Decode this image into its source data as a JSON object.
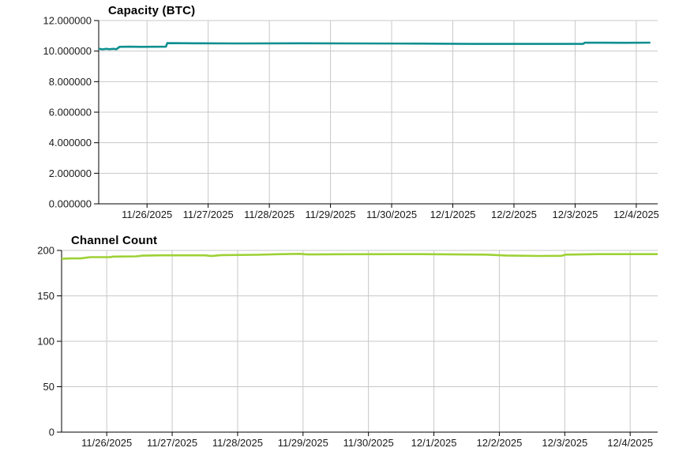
{
  "page": {
    "background": "#ffffff",
    "grid_color": "#c8c8c8",
    "axis_color": "#000000",
    "label_color": "#1a1a1a"
  },
  "chart_data": [
    {
      "type": "line",
      "title": "Capacity (BTC)",
      "xlabel": "",
      "ylabel": "",
      "legend": "none",
      "grid": true,
      "grid_color": "#c8c8c8",
      "axis_color": "#000000",
      "ylim": [
        0,
        12
      ],
      "xlim": [
        -0.79,
        8.35
      ],
      "y_ticks": [
        0,
        2,
        4,
        6,
        8,
        10,
        12
      ],
      "y_tick_labels": [
        "0.000000",
        "2.000000",
        "4.000000",
        "6.000000",
        "8.000000",
        "10.000000",
        "12.000000"
      ],
      "x_ticks_days": [
        0,
        1,
        2,
        3,
        4,
        5,
        6,
        7,
        8
      ],
      "x_tick_labels": [
        "11/26/2025",
        "11/27/2025",
        "11/28/2025",
        "11/29/2025",
        "11/30/2025",
        "12/1/2025",
        "12/2/2025",
        "12/3/2025",
        "12/4/2025"
      ],
      "series": [
        {
          "name": "Capacity (BTC)",
          "color": "#0f8f8f",
          "points": [
            [
              -0.79,
              10.16
            ],
            [
              -0.73,
              10.11
            ],
            [
              -0.67,
              10.15
            ],
            [
              -0.61,
              10.12
            ],
            [
              -0.55,
              10.15
            ],
            [
              -0.5,
              10.12
            ],
            [
              -0.45,
              10.28
            ],
            [
              -0.3,
              10.29
            ],
            [
              -0.1,
              10.28
            ],
            [
              0.31,
              10.29
            ],
            [
              0.33,
              10.52
            ],
            [
              0.8,
              10.51
            ],
            [
              1.5,
              10.5
            ],
            [
              2.5,
              10.51
            ],
            [
              3.5,
              10.5
            ],
            [
              4.5,
              10.49
            ],
            [
              5.3,
              10.47
            ],
            [
              6.2,
              10.47
            ],
            [
              7.13,
              10.47
            ],
            [
              7.16,
              10.55
            ],
            [
              7.8,
              10.54
            ],
            [
              8.23,
              10.55
            ]
          ]
        }
      ]
    },
    {
      "type": "line",
      "title": "Channel Count",
      "xlabel": "",
      "ylabel": "",
      "legend": "none",
      "grid": true,
      "grid_color": "#c8c8c8",
      "axis_color": "#000000",
      "ylim": [
        0,
        200
      ],
      "xlim": [
        -0.69,
        8.42
      ],
      "y_ticks": [
        0,
        50,
        100,
        150,
        200
      ],
      "y_tick_labels": [
        "0",
        "50",
        "100",
        "150",
        "200"
      ],
      "x_ticks_days": [
        0,
        1,
        2,
        3,
        4,
        5,
        6,
        7,
        8
      ],
      "x_tick_labels": [
        "11/26/2025",
        "11/27/2025",
        "11/28/2025",
        "11/29/2025",
        "11/30/2025",
        "12/1/2025",
        "12/2/2025",
        "12/3/2025",
        "12/4/2025"
      ],
      "series": [
        {
          "name": "Channel Count",
          "color": "#9dd135",
          "points": [
            [
              -0.69,
              190.8
            ],
            [
              -0.55,
              191.2
            ],
            [
              -0.4,
              191.2
            ],
            [
              -0.25,
              192.6
            ],
            [
              0.05,
              192.6
            ],
            [
              0.1,
              193.2
            ],
            [
              0.45,
              193.5
            ],
            [
              0.55,
              194.3
            ],
            [
              0.85,
              194.6
            ],
            [
              1.5,
              194.6
            ],
            [
              1.6,
              193.8
            ],
            [
              1.75,
              194.9
            ],
            [
              2.3,
              195.2
            ],
            [
              2.6,
              195.8
            ],
            [
              2.95,
              196.3
            ],
            [
              3.07,
              195.6
            ],
            [
              3.6,
              195.8
            ],
            [
              4.8,
              195.9
            ],
            [
              5.8,
              195.4
            ],
            [
              6.1,
              194.4
            ],
            [
              6.6,
              193.9
            ],
            [
              6.95,
              194.1
            ],
            [
              7.02,
              195.4
            ],
            [
              7.5,
              195.9
            ],
            [
              8.42,
              195.9
            ]
          ]
        }
      ]
    }
  ]
}
